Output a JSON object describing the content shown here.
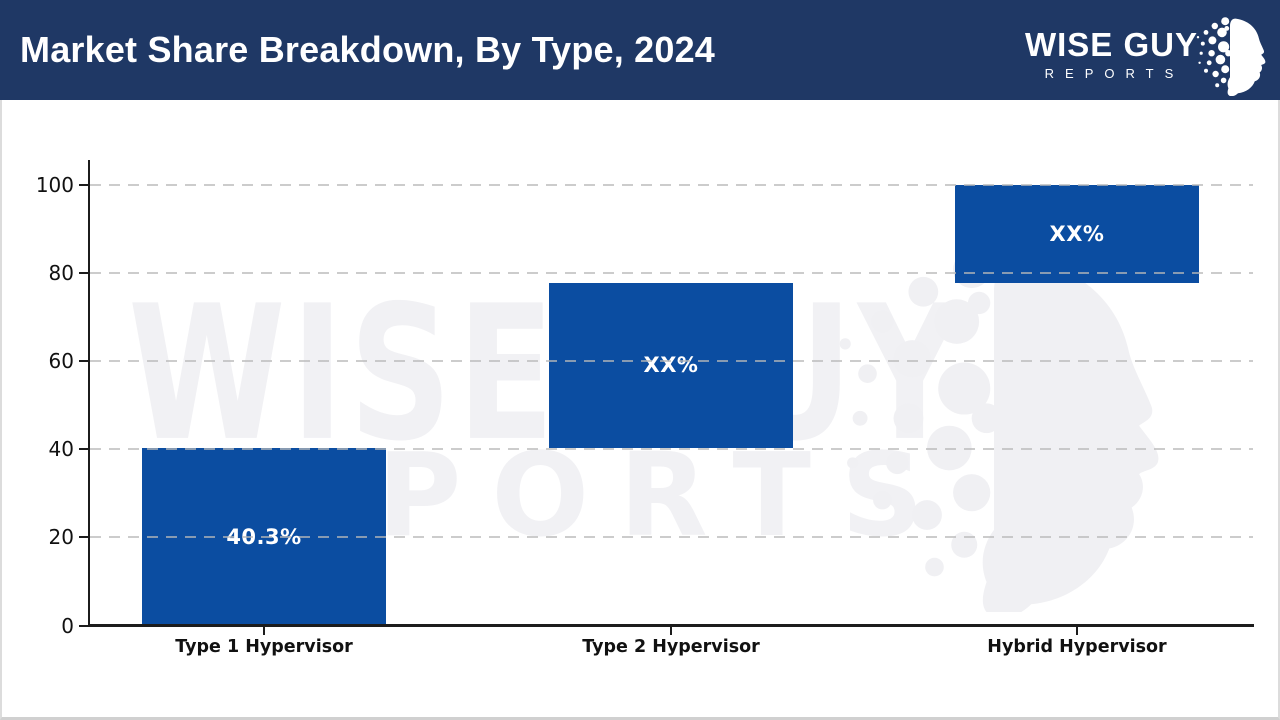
{
  "header": {
    "title": "Market Share Breakdown, By Type, 2024",
    "bg_color": "#1f3865",
    "logo": {
      "line1": "WISE GUY",
      "line2": "REPORTS"
    }
  },
  "watermark": {
    "line1": "WISE GUY",
    "line2": "REPORTS"
  },
  "chart_data": {
    "type": "bar",
    "variant": "floating stacked-breakdown bars (each bar spans from previous cumulative % to new cumulative %)",
    "title": "Market Share Breakdown, By Type, 2024",
    "categories": [
      "Type 1 Hypervisor",
      "Type 2 Hypervisor",
      "Hybrid Hypervisor"
    ],
    "unit": "%",
    "ylim": [
      0,
      100
    ],
    "yticks": [
      0,
      20,
      40,
      60,
      80,
      100
    ],
    "grid": "horizontal dashed gridlines, drawn above bars",
    "legend": "none",
    "bar_color": "#0b4da1",
    "label_color": "#ffffff",
    "segments": [
      {
        "category": "Type 1 Hypervisor",
        "from": 0,
        "to": 40.3,
        "size": 40.3,
        "label": "40.3%"
      },
      {
        "category": "Type 2 Hypervisor",
        "from": 40.3,
        "to": 77.8,
        "size": 37.5,
        "label": "XX%"
      },
      {
        "category": "Hybrid Hypervisor",
        "from": 77.8,
        "to": 100,
        "size": 22.2,
        "label": "XX%"
      }
    ]
  }
}
